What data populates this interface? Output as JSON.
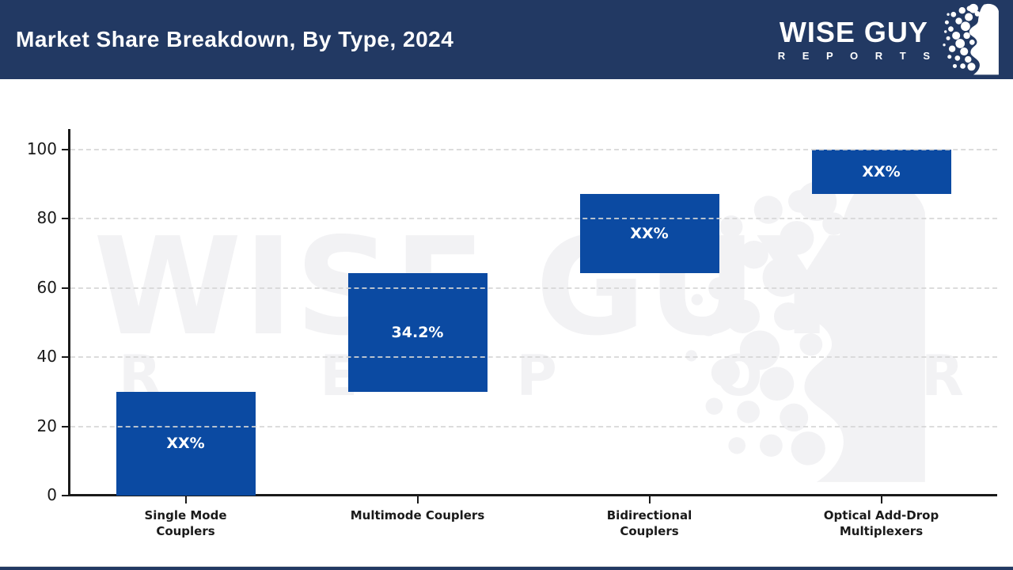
{
  "header": {
    "title": "Market Share Breakdown, By Type, 2024",
    "logo": {
      "wordmark": "WISE GUY",
      "subtext": "R E P O R T S"
    }
  },
  "watermark": {
    "line1": "WISE GUY",
    "line2": "R E P O R T S"
  },
  "chart_data": {
    "type": "bar",
    "subtype": "floating-waterfall",
    "title": "Market Share Breakdown, By Type, 2024",
    "categories": [
      "Single Mode\nCouplers",
      "Multimode Couplers",
      "Bidirectional\nCouplers",
      "Optical Add-Drop\nMultiplexers"
    ],
    "segments": [
      {
        "category": "Single Mode Couplers",
        "start": 0,
        "end": 30,
        "label": "XX%"
      },
      {
        "category": "Multimode Couplers",
        "start": 30,
        "end": 64.2,
        "label": "34.2%"
      },
      {
        "category": "Bidirectional Couplers",
        "start": 64.2,
        "end": 87.2,
        "label": "XX%"
      },
      {
        "category": "Optical Add-Drop Multiplexers",
        "start": 87.2,
        "end": 100,
        "label": "XX%"
      }
    ],
    "xlabel": "",
    "ylabel": "",
    "ylim": [
      0,
      100
    ],
    "yticks": [
      0,
      20,
      40,
      60,
      80,
      100
    ],
    "grid": true,
    "gridline_style": "dashed",
    "legend": "none",
    "bar_color": "#0b4aa2"
  },
  "colors": {
    "header_bg": "#223963",
    "bar": "#0b4aa2",
    "axis": "#1a1a1a",
    "grid": "#d6d6d6",
    "watermark": "#f2f2f4",
    "title_text": "#ffffff",
    "bar_label_text": "#ffffff"
  }
}
